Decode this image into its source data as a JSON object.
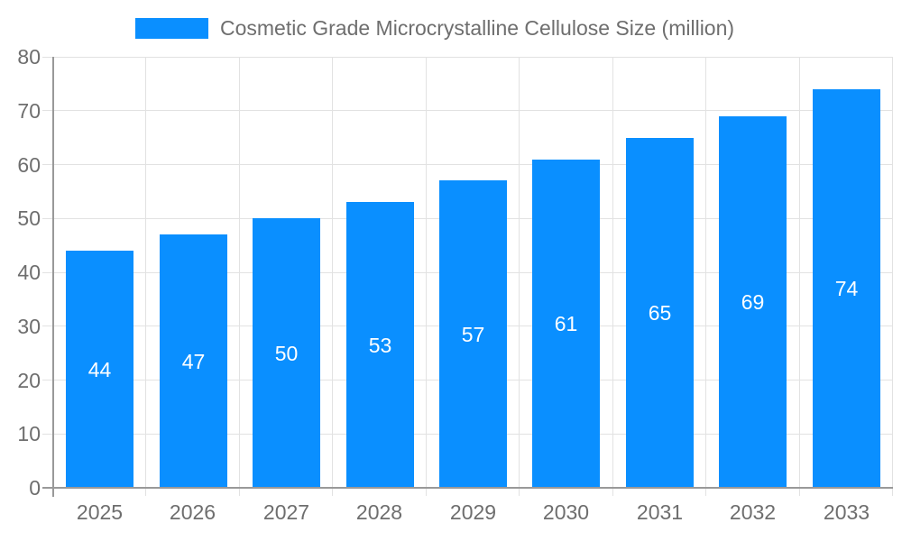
{
  "chart_data": {
    "type": "bar",
    "title": "Cosmetic Grade Microcrystalline Cellulose Size (million)",
    "categories": [
      "2025",
      "2026",
      "2027",
      "2028",
      "2029",
      "2030",
      "2031",
      "2032",
      "2033"
    ],
    "values": [
      44,
      47,
      50,
      53,
      57,
      61,
      65,
      69,
      74
    ],
    "xlabel": "",
    "ylabel": "",
    "ylim": [
      0,
      80
    ],
    "yticks": [
      0,
      10,
      20,
      30,
      40,
      50,
      60,
      70,
      80
    ],
    "grid": true,
    "legend_position": "top",
    "value_label_position": "inside-center",
    "colors": {
      "bar": "#0a8fff",
      "bar_label": "#ffffff",
      "axis": "#999999",
      "grid": "#e2e2e2",
      "tick_text": "#6e6e6e",
      "legend_text": "#6e6e6e",
      "background": "#ffffff"
    }
  }
}
